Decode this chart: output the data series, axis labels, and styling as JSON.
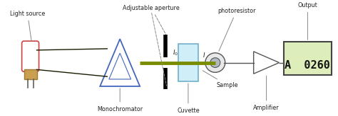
{
  "bg_color": "#ffffff",
  "beam_color": "#7a8c00",
  "beam_lw": 3.5,
  "bulb_fill": "#ffffff",
  "bulb_outline": "#cc4444",
  "base_fill": "#c8a050",
  "base_outline": "#a07830",
  "prism_color": "#4466bb",
  "cuvette_fill": "#d0eef8",
  "cuvette_outline": "#70b0cc",
  "display_bg": "#ddeebb",
  "display_border": "#444444",
  "connector_color": "#555555",
  "dashed_color": "#888888",
  "arrow_color": "#888888",
  "text_color": "#222222",
  "font_size": 5.8,
  "components": {
    "light_source_label": "Light source",
    "monochromator_label": "Monochromator",
    "aperture_label": "Adjustable aperture",
    "cuvette_label": "Cuvette",
    "sample_label": "Sample",
    "photoresistor_label": "photoresistor",
    "amplifier_label": "Amplifier",
    "output_label": "Output",
    "display_text": "A  0260"
  }
}
